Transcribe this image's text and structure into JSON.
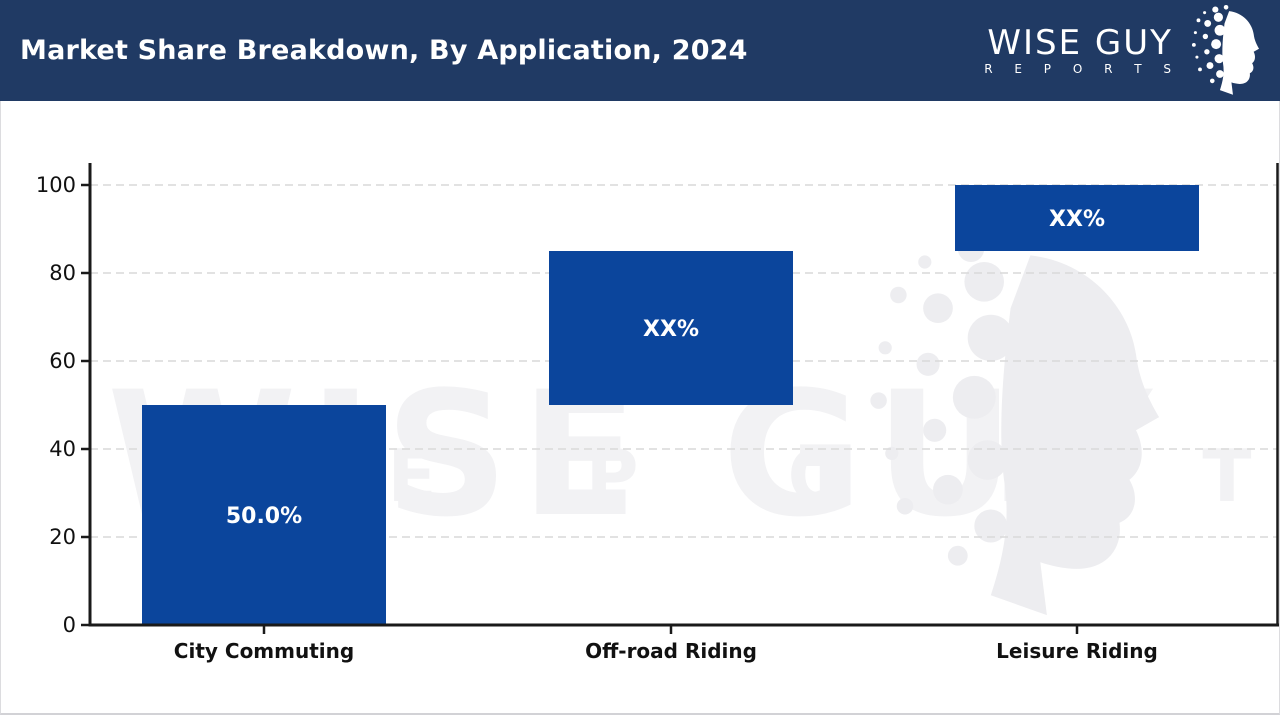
{
  "header": {
    "title": "Market Share Breakdown, By Application, 2024",
    "logo": {
      "line1": "WISE GUY",
      "line2": "R E P O R T S"
    }
  },
  "watermark": {
    "line1": "WISE GUY",
    "line2": "R E P O R T S"
  },
  "chart_data": {
    "type": "bar",
    "subtype": "floating-segment-breakdown",
    "title": "Market Share Breakdown, By Application, 2024",
    "categories": [
      "City Commuting",
      "Off-road Riding",
      "Leisure Riding"
    ],
    "segments": [
      {
        "category": "City Commuting",
        "from": 0,
        "to": 50,
        "label": "50.0%"
      },
      {
        "category": "Off-road Riding",
        "from": 50,
        "to": 85,
        "label": "XX%"
      },
      {
        "category": "Leisure Riding",
        "from": 85,
        "to": 100,
        "label": "XX%"
      }
    ],
    "xlabel": "",
    "ylabel": "",
    "ylim": [
      0,
      100
    ],
    "yticks": [
      0,
      20,
      40,
      60,
      80,
      100
    ],
    "grid": "horizontal-dashed",
    "legend": "none",
    "bar_color": "#0B459C",
    "bar_label_color": "#FFFFFF"
  },
  "colors": {
    "header_bg": "#203A64",
    "axis": "#1A1A1A",
    "gridline": "#D9D9D9",
    "tick_text": "#111111",
    "watermark_text": "#F2F2F4",
    "watermark_head": "#EDEDF0"
  }
}
